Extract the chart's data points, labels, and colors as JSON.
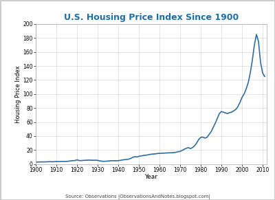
{
  "title": "U.S. Housing Price Index Since 1900",
  "xlabel": "Year",
  "ylabel": "Housing Price Index",
  "source_text": "Source: Observations |ObservationsAndNotes.blogspot.com|",
  "line_color": "#2E6DA4",
  "background_color": "#ffffff",
  "title_color": "#1B6EA8",
  "xlim": [
    1900,
    2012
  ],
  "ylim": [
    0,
    200
  ],
  "yticks": [
    0,
    20,
    40,
    60,
    80,
    100,
    120,
    140,
    160,
    180,
    200
  ],
  "xticks": [
    1900,
    1910,
    1920,
    1930,
    1940,
    1950,
    1960,
    1970,
    1980,
    1990,
    2000,
    2010
  ],
  "years": [
    1900,
    1901,
    1902,
    1903,
    1904,
    1905,
    1906,
    1907,
    1908,
    1909,
    1910,
    1911,
    1912,
    1913,
    1914,
    1915,
    1916,
    1917,
    1918,
    1919,
    1920,
    1921,
    1922,
    1923,
    1924,
    1925,
    1926,
    1927,
    1928,
    1929,
    1930,
    1931,
    1932,
    1933,
    1934,
    1935,
    1936,
    1937,
    1938,
    1939,
    1940,
    1941,
    1942,
    1943,
    1944,
    1945,
    1946,
    1947,
    1948,
    1949,
    1950,
    1951,
    1952,
    1953,
    1954,
    1955,
    1956,
    1957,
    1958,
    1959,
    1960,
    1961,
    1962,
    1963,
    1964,
    1965,
    1966,
    1967,
    1968,
    1969,
    1970,
    1971,
    1972,
    1973,
    1974,
    1975,
    1976,
    1977,
    1978,
    1979,
    1980,
    1981,
    1982,
    1983,
    1984,
    1985,
    1986,
    1987,
    1988,
    1989,
    1990,
    1991,
    1992,
    1993,
    1994,
    1995,
    1996,
    1997,
    1998,
    1999,
    2000,
    2001,
    2002,
    2003,
    2004,
    2005,
    2006,
    2007,
    2008,
    2009,
    2010,
    2011
  ],
  "values": [
    2.8,
    2.8,
    2.9,
    3.0,
    3.0,
    3.1,
    3.2,
    3.3,
    3.2,
    3.3,
    3.5,
    3.5,
    3.6,
    3.7,
    3.7,
    3.7,
    4.0,
    4.5,
    4.8,
    4.9,
    6.0,
    5.0,
    4.8,
    5.2,
    5.3,
    5.5,
    5.6,
    5.4,
    5.4,
    5.4,
    5.2,
    4.5,
    4.0,
    3.8,
    4.0,
    4.2,
    4.4,
    4.7,
    4.7,
    4.7,
    4.8,
    5.2,
    5.8,
    6.2,
    6.5,
    6.8,
    8.0,
    9.5,
    10.5,
    10.0,
    11.0,
    11.5,
    12.0,
    12.5,
    12.8,
    13.5,
    14.0,
    14.2,
    14.5,
    15.0,
    15.2,
    15.3,
    15.5,
    15.7,
    15.9,
    16.0,
    16.1,
    16.3,
    16.8,
    17.5,
    18.0,
    19.5,
    21.0,
    22.5,
    23.5,
    22.0,
    23.5,
    26.0,
    30.0,
    35.0,
    38.0,
    38.5,
    37.0,
    38.0,
    42.0,
    46.0,
    52.0,
    58.0,
    65.0,
    72.0,
    75.0,
    74.0,
    73.0,
    72.0,
    73.5,
    74.0,
    76.0,
    78.0,
    82.0,
    88.0,
    95.0,
    100.0,
    107.0,
    116.0,
    130.0,
    148.0,
    170.0,
    185.0,
    175.0,
    145.0,
    130.0,
    125.0
  ]
}
